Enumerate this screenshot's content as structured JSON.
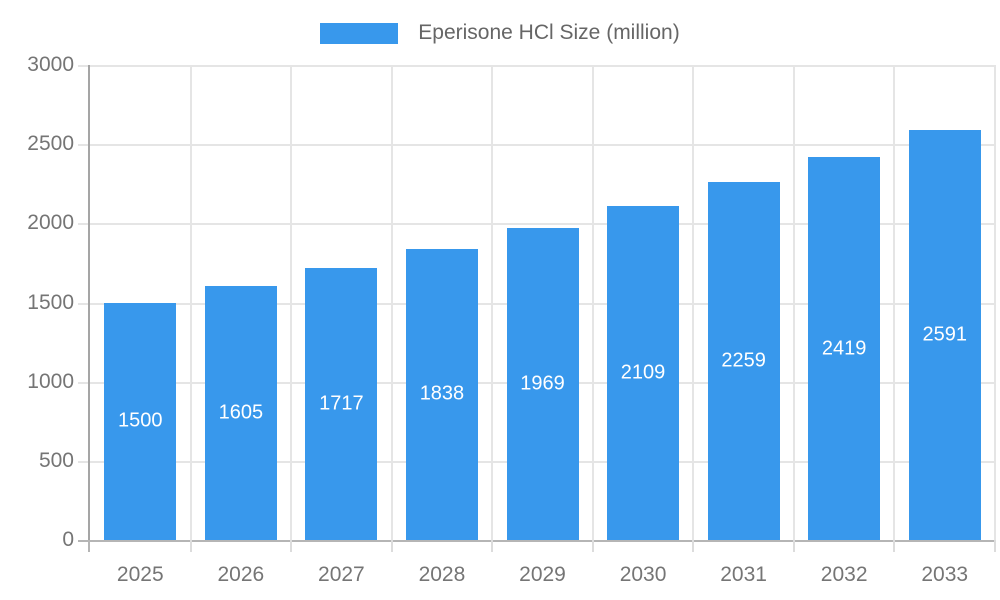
{
  "legend": {
    "label": "Eperisone HCl Size (million)"
  },
  "chart_data": {
    "type": "bar",
    "title": "Eperisone HCl Size (million)",
    "categories": [
      "2025",
      "2026",
      "2027",
      "2028",
      "2029",
      "2030",
      "2031",
      "2032",
      "2033"
    ],
    "values": [
      1500,
      1605,
      1717,
      1838,
      1969,
      2109,
      2259,
      2419,
      2591
    ],
    "series": [
      {
        "name": "Eperisone HCl Size (million)",
        "values": [
          1500,
          1605,
          1717,
          1838,
          1969,
          2109,
          2259,
          2419,
          2591
        ]
      }
    ],
    "xlabel": "",
    "ylabel": "",
    "ylim": [
      0,
      3000
    ],
    "yticks": [
      0,
      500,
      1000,
      1500,
      2000,
      2500,
      3000
    ],
    "grid": true,
    "legend_position": "top-center",
    "data_labels_position": "inside-middle",
    "colors": {
      "bar": "#3898EC",
      "value_label": "#FFFFFF",
      "tick_label": "#757575",
      "legend_text": "#666666",
      "gridline": "#E5E5E5",
      "axis_line": "#A5A5A5",
      "zero_line": "#B5B5B5",
      "x_tick_mark": "#DCDCDC",
      "background": "#FFFFFF"
    }
  }
}
